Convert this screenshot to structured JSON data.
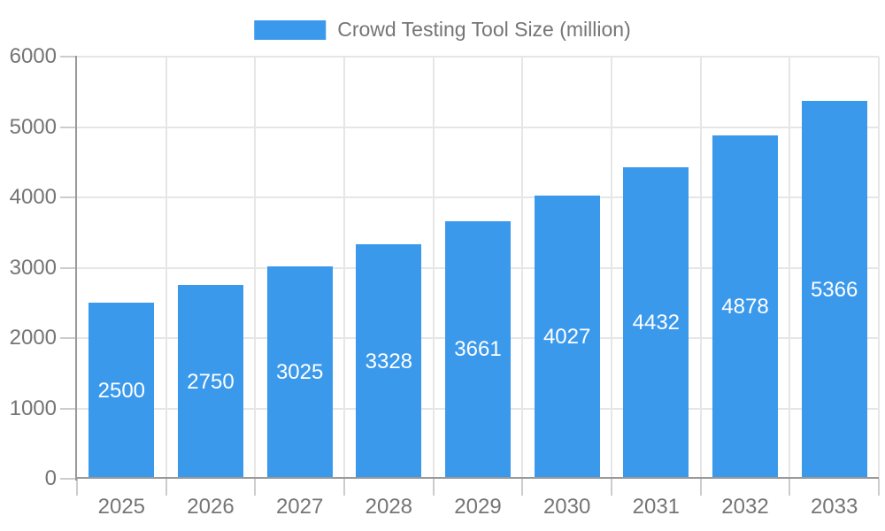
{
  "chart_data": {
    "type": "bar",
    "title": "Crowd Testing Tool Size (million)",
    "categories": [
      "2025",
      "2026",
      "2027",
      "2028",
      "2029",
      "2030",
      "2031",
      "2032",
      "2033"
    ],
    "series": [
      {
        "name": "Crowd Testing Tool Size (million)",
        "values": [
          2500,
          2750,
          3025,
          3328,
          3661,
          4027,
          4432,
          4878,
          5366
        ]
      }
    ],
    "xlabel": "",
    "ylabel": "",
    "ylim": [
      0,
      6000
    ],
    "yticks": [
      0,
      1000,
      2000,
      3000,
      4000,
      5000,
      6000
    ],
    "grid": true,
    "legend_position": "top-center",
    "value_labels": "inside-center-white",
    "colors": {
      "bar": "#3B99EC",
      "axis_text": "#757575",
      "grid": "#E6E6E6",
      "axis_line": "#999999",
      "tick": "#CCCCCC",
      "value_label": "#FFFFFF",
      "background": "#FFFFFF"
    }
  }
}
